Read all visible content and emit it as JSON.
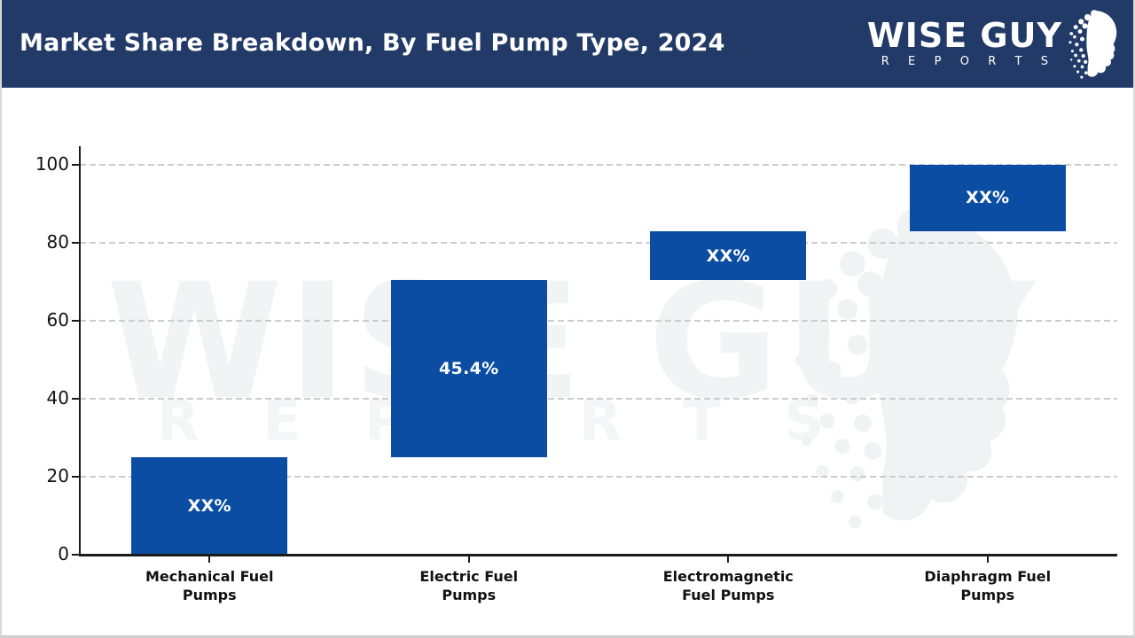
{
  "header": {
    "title": "Market Share Breakdown, By Fuel Pump Type, 2024",
    "bg_color": "#223a68",
    "logo": {
      "line1": "WISE GUY",
      "line2": "REPORTS"
    }
  },
  "watermark": {
    "line1": "WISE GUY",
    "line2": "REPORTS"
  },
  "chart_data": {
    "type": "bar",
    "subtype": "floating-waterfall-segments",
    "title": "Market Share Breakdown, By Fuel Pump Type, 2024",
    "categories": [
      "Mechanical Fuel Pumps",
      "Electric Fuel Pumps",
      "Electromagnetic Fuel Pumps",
      "Diaphragm Fuel Pumps"
    ],
    "category_lines": [
      [
        "Mechanical Fuel",
        "Pumps"
      ],
      [
        "Electric Fuel",
        "Pumps"
      ],
      [
        "Electromagnetic",
        "Fuel Pumps"
      ],
      [
        "Diaphragm Fuel",
        "Pumps"
      ]
    ],
    "bars": [
      {
        "start": 0,
        "end": 25,
        "value": 25,
        "label": "XX%"
      },
      {
        "start": 25,
        "end": 70.4,
        "value": 45.4,
        "label": "45.4%"
      },
      {
        "start": 70.4,
        "end": 83,
        "value": 12.6,
        "label": "XX%"
      },
      {
        "start": 83,
        "end": 100,
        "value": 17,
        "label": "XX%"
      }
    ],
    "yticks": [
      0,
      20,
      40,
      60,
      80,
      100
    ],
    "ylim": [
      0,
      104.8
    ],
    "xlabel": "",
    "ylabel": "",
    "legend": "none",
    "grid": {
      "axis": "y",
      "style": "dashed",
      "color": "#cccccc"
    },
    "bar_color": "#0b4da2",
    "value_label_color": "#ffffff"
  }
}
